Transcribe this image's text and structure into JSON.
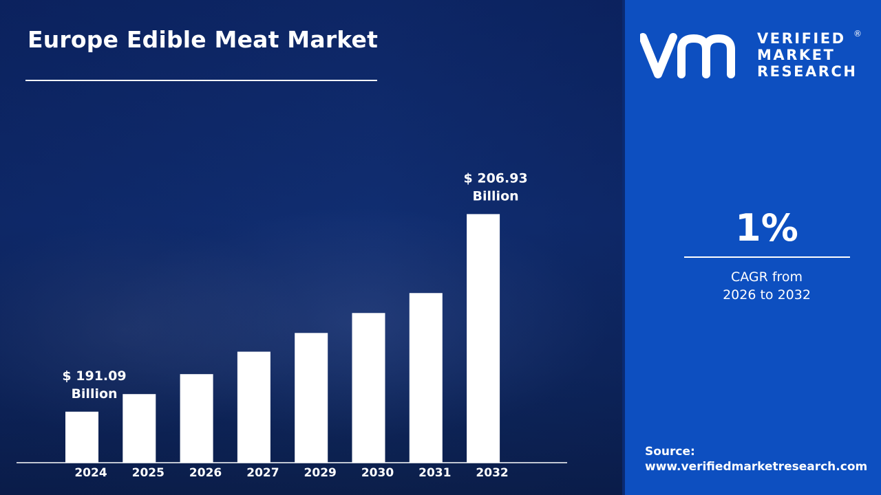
{
  "title": "Europe Edible Meat Market",
  "logo": {
    "line1": "VERIFIED",
    "line2": "MARKET",
    "line3": "RESEARCH",
    "registered": "®"
  },
  "cagr": {
    "value": "1%",
    "label_line1": "CAGR from",
    "label_line2": "2026 to 2032"
  },
  "source": {
    "label": "Source:",
    "url": "www.verifiedmarketresearch.com"
  },
  "colors": {
    "right_panel": "#0d4fc0",
    "bars": "#ffffff",
    "text": "#ffffff"
  },
  "chart_data": {
    "type": "bar",
    "categories": [
      "2024",
      "2025",
      "2026",
      "2027",
      "2029",
      "2030",
      "2031",
      "2032"
    ],
    "values": [
      191.09,
      192.5,
      194.1,
      195.9,
      197.4,
      199.0,
      200.6,
      206.93
    ],
    "ylim": [
      187,
      208
    ],
    "annotations": [
      {
        "category": "2024",
        "line1": "$ 191.09",
        "line2": "Billion"
      },
      {
        "category": "2032",
        "line1": "$ 206.93",
        "line2": "Billion"
      }
    ],
    "xlabel": "",
    "ylabel": ""
  }
}
